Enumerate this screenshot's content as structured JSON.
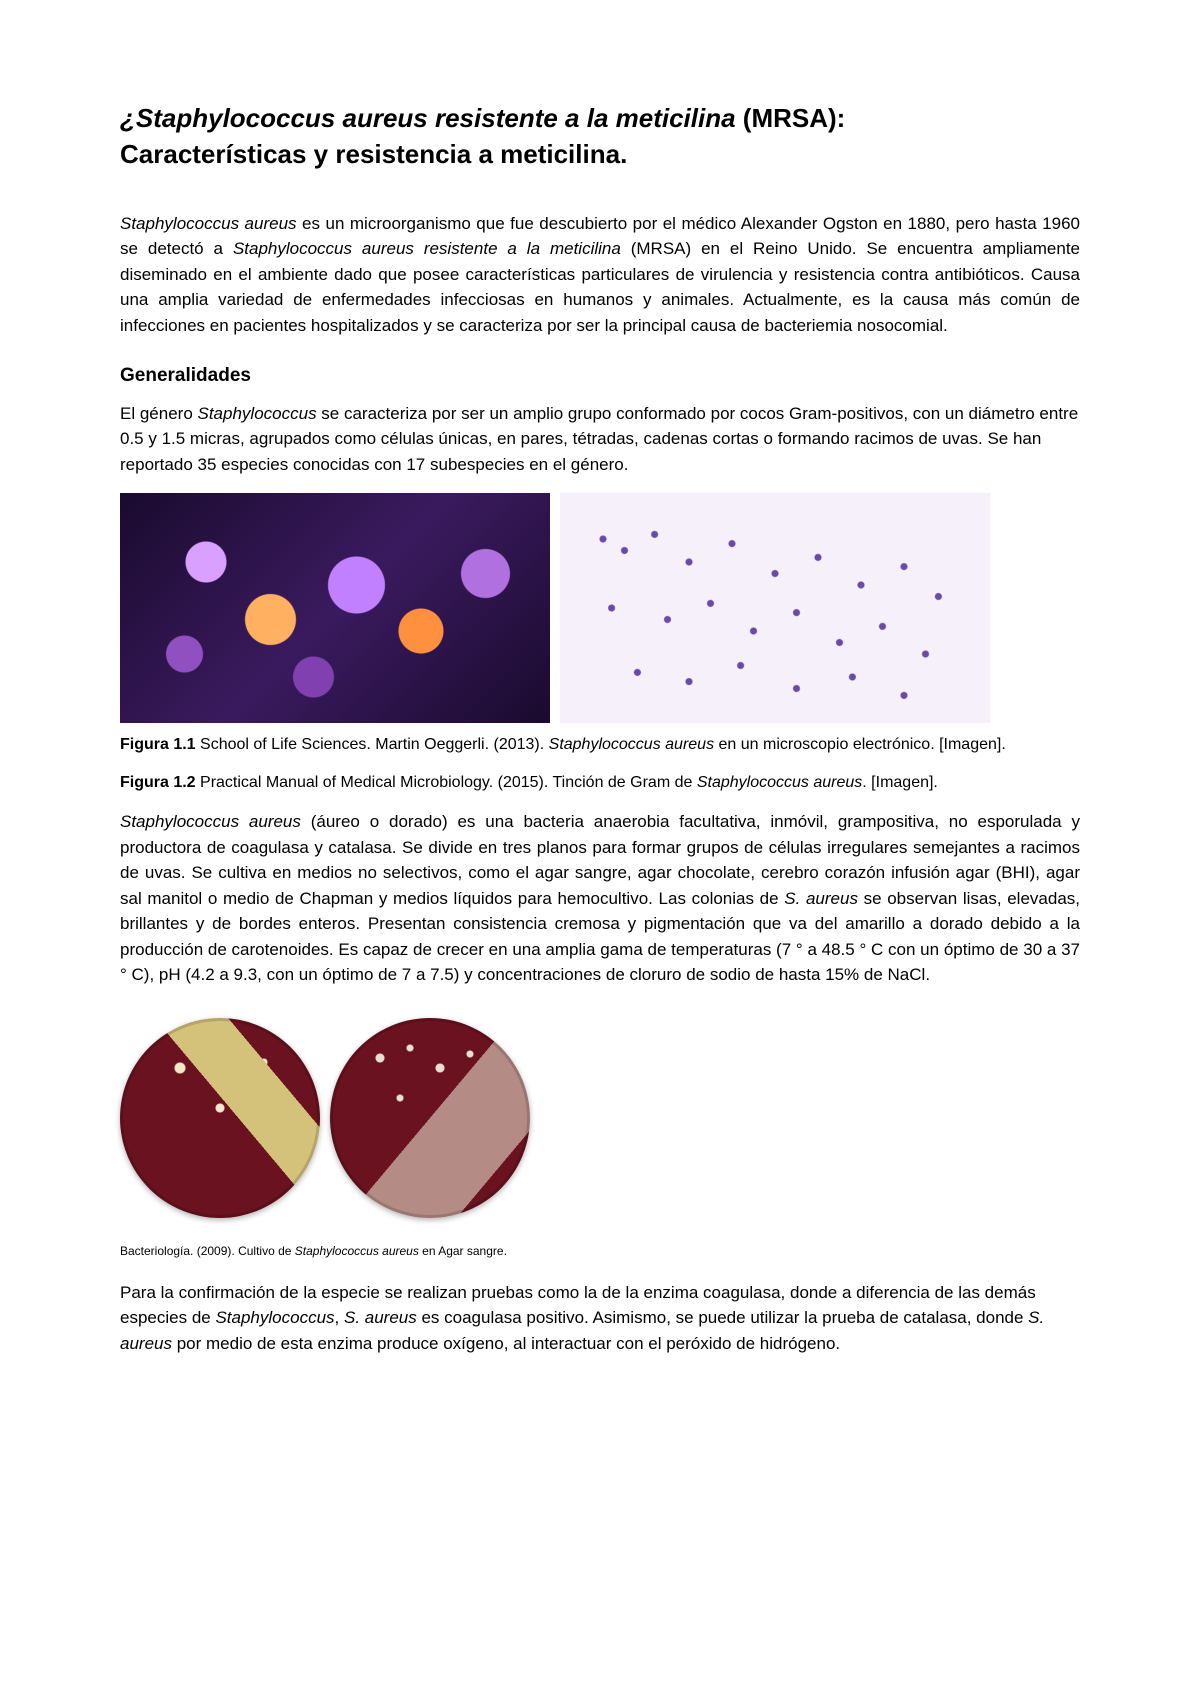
{
  "title": {
    "part1_italic": "¿Staphylococcus aureus resistente a la meticilina",
    "part2_bold": " (MRSA): ",
    "part3_bold": "Características y resistencia a meticilina."
  },
  "intro": {
    "t1_italic": "Staphylococcus aureus",
    "t2": " es un microorganismo que fue descubierto por el médico Alexander Ogston en 1880, pero hasta 1960 se detectó a ",
    "t3_italic": "Staphylococcus aureus resistente a la meticilina",
    "t4": " (MRSA) en el Reino Unido. Se encuentra ampliamente diseminado en el ambiente dado que posee características particulares de virulencia y resistencia contra antibióticos. Causa una amplia variedad de enfermedades infecciosas en humanos y animales. Actualmente, es la causa más común de infecciones en pacientes hospitalizados y se caracteriza por ser la principal causa de bacteriemia nosocomial."
  },
  "section1_heading": "Generalidades",
  "section1_p1": {
    "t1": "El género ",
    "t2_italic": "Staphylococcus",
    "t3": " se caracteriza por ser un amplio grupo conformado por cocos Gram-positivos, con un diámetro entre 0.5 y 1.5 micras, agrupados como células únicas, en pares, tétradas, cadenas cortas o formando racimos de uvas. Se han reportado 35 especies conocidas con 17 subespecies en el género."
  },
  "figures": {
    "sem": {
      "bg_colors": [
        "#1a0a2e",
        "#3a1a5e"
      ],
      "sphere_colors": [
        "#d9a0ff",
        "#ffb060",
        "#c080ff",
        "#ff9040",
        "#b070e0"
      ]
    },
    "gram": {
      "bg": "#f5f0fa",
      "cluster_color": "#6a4aa8"
    }
  },
  "caption1": {
    "label": "Figura 1.1",
    "t1": " School of Life Sciences. Martin Oeggerli. (2013). ",
    "t2_italic": "Staphylococcus aureus",
    "t3": " en un microscopio electrónico. [Imagen]."
  },
  "caption2": {
    "label": "Figura 1.2",
    "t1": " Practical Manual of Medical Microbiology. (2015). Tinción de Gram de ",
    "t2_italic": "Staphylococcus aureus",
    "t3": ". [Imagen]."
  },
  "section1_p2": {
    "t1_italic": "Staphylococcus aureus",
    "t2": " (áureo o dorado) es una bacteria anaerobia facultativa, inmóvil, grampositiva, no esporulada y productora de coagulasa y catalasa. Se divide en tres planos para formar grupos de células irregulares semejantes a racimos de uvas. Se cultiva en medios no selectivos, como el agar sangre, agar chocolate, cerebro corazón infusión agar (BHI), agar sal manitol o medio de Chapman y medios líquidos para hemocultivo. Las colonias de ",
    "t3_italic": "S. aureus",
    "t4": " se observan lisas, elevadas, brillantes y de bordes enteros. Presentan consistencia cremosa y pigmentación que va del amarillo a dorado debido a la producción de carotenoides. Es capaz de crecer en una amplia gama de temperaturas (7 ° a 48.5 ° C con un óptimo de 30 a 37 ° C), pH (4.2 a 9.3, con un óptimo de 7 a 7.5) y concentraciones de cloruro de sodio de hasta 15% de NaCl."
  },
  "agar": {
    "dish_color": "#6a1220",
    "colony_color_left": "#d4c27a",
    "colony_color_right": "#e8e0d0"
  },
  "small_caption": {
    "t1": "Bacteriología. (2009). Cultivo de ",
    "t2_italic": "Staphylococcus aureus",
    "t3": " en Agar sangre."
  },
  "final_p": {
    "t1": "Para la confirmación de la especie se realizan pruebas como la de la enzima coagulasa, donde a diferencia de las demás especies de ",
    "t2_italic": "Staphylococcus",
    "t3": ", ",
    "t4_italic": "S. aureus",
    "t5": " es coagulasa positivo. Asimismo, se puede utilizar la prueba de catalasa, donde ",
    "t6_italic": "S. aureus",
    "t7": " por medio de esta enzima produce oxígeno, al interactuar con el peróxido de hidrógeno."
  }
}
